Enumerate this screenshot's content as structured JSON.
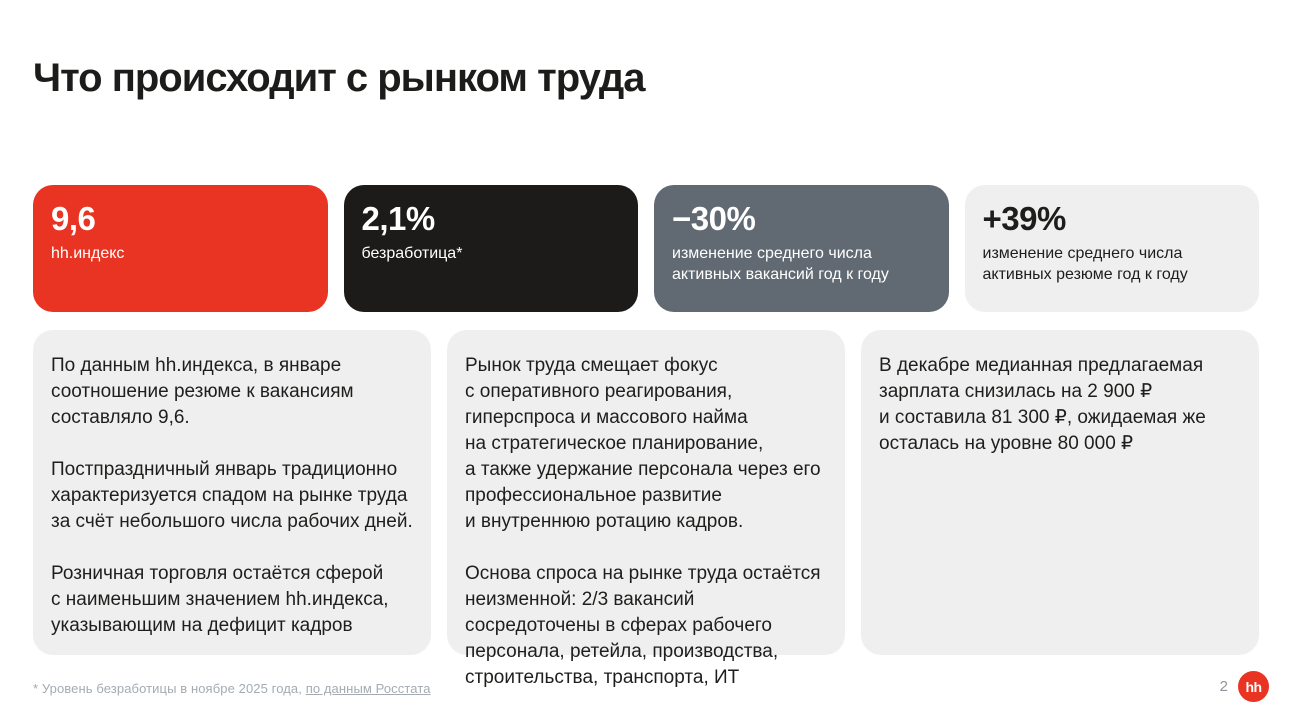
{
  "slide": {
    "title": "Что происходит с рынком труда"
  },
  "stats": [
    {
      "value": "9,6",
      "label": "hh.индекс",
      "bg": "#e93323",
      "fg": "#ffffff"
    },
    {
      "value": "2,1%",
      "label": "безработица*",
      "bg": "#1c1b19",
      "fg": "#ffffff"
    },
    {
      "value": "−30%",
      "label": "изменение среднего числа активных вакансий год к году",
      "bg": "#616973",
      "fg": "#ffffff"
    },
    {
      "value": "+39%",
      "label": "изменение среднего числа активных резюме год к году",
      "bg": "#efefef",
      "fg": "#1d1d1b"
    }
  ],
  "info_cards": [
    {
      "paragraphs": [
        "По данным hh.индекса, в январе соотношение резюме к вакансиям составляло 9,6.",
        "Постпраздничный январь традиционно характеризуется спадом на рынке труда за счёт небольшого числа рабочих дней.",
        "Розничная торговля остаётся сферой с наименьшим значением hh.индекса, указывающим на дефицит кадров"
      ]
    },
    {
      "paragraphs": [
        "Рынок труда смещает фокус с оперативного реагирования, гиперспроса и массового найма на стратегическое планирование, а также удержание персонала через его профессиональное развитие и внутреннюю ротацию кадров.",
        "Основа спроса на рынке труда остаётся неизменной: 2/3 вакансий сосредоточены в сферах рабочего персонала, ретейла, производства, строительства, транспорта, ИТ"
      ]
    },
    {
      "paragraphs": [
        "В декабре медианная предлагаемая зарплата снизилась на 2 900 ₽ и составила 81 300 ₽, ожидаемая же осталась на уровне 80 000 ₽"
      ]
    }
  ],
  "footer": {
    "note_prefix": "* Уровень безработицы в ноябре 2025 года, ",
    "note_link": "по данным Росстата",
    "page_number": "2",
    "logo_text": "hh"
  },
  "colors": {
    "accent_red": "#e93323",
    "card_black": "#1c1b19",
    "card_gray": "#616973",
    "card_light": "#efefef",
    "text_dark": "#1d1d1b",
    "footnote_gray": "#a4abb3"
  }
}
